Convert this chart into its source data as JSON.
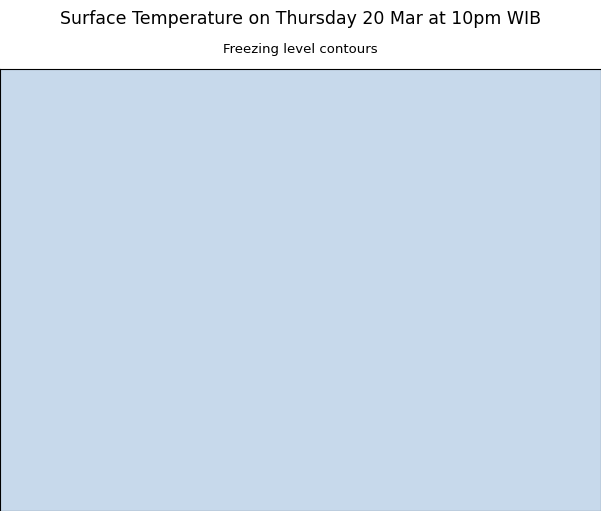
{
  "title": "Surface Temperature on Thursday 20 Mar at 10pm WIB",
  "subtitle": "Freezing level contours",
  "title_fontsize": 12.5,
  "subtitle_fontsize": 9.5,
  "figsize": [
    6.01,
    5.11
  ],
  "dpi": 100,
  "lon_min": 94,
  "lon_max": 142,
  "lat_min": -14,
  "lat_max": 10,
  "ocean_color": [
    0.78,
    0.85,
    0.92
  ],
  "title_bg": "#ffffff",
  "border_color": "#aaaaaa"
}
